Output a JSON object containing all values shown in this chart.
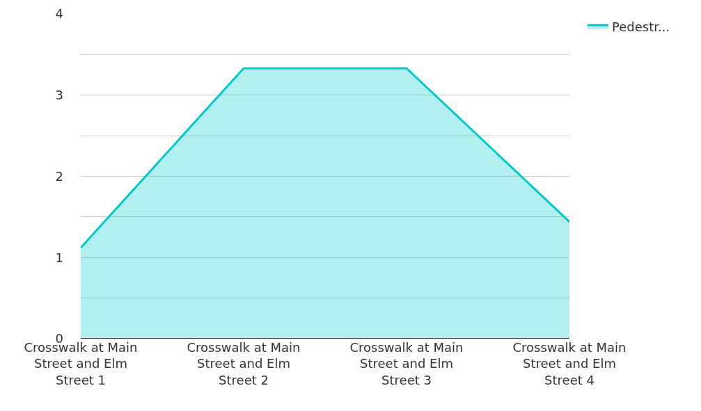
{
  "chart_data": {
    "type": "area",
    "categories": [
      "Crosswalk at Main Street and Elm Street 1",
      "Crosswalk at Main Street and Elm Street 2",
      "Crosswalk at Main Street and Elm Street 3",
      "Crosswalk at Main Street and Elm Street 4"
    ],
    "series": [
      {
        "name": "Pedestr...",
        "color": "#00c9c9",
        "values": [
          1.12,
          3.33,
          3.33,
          1.44
        ]
      }
    ],
    "ylim": [
      0,
      4
    ],
    "yticks": [
      0,
      {
        "value": 0.5,
        "label": null
      },
      1,
      {
        "value": 1.5,
        "label": null
      },
      2,
      {
        "value": 2.5,
        "label": null
      },
      3,
      {
        "value": 3.5,
        "label": null
      },
      4
    ],
    "grid": "y",
    "legend": "top right"
  }
}
